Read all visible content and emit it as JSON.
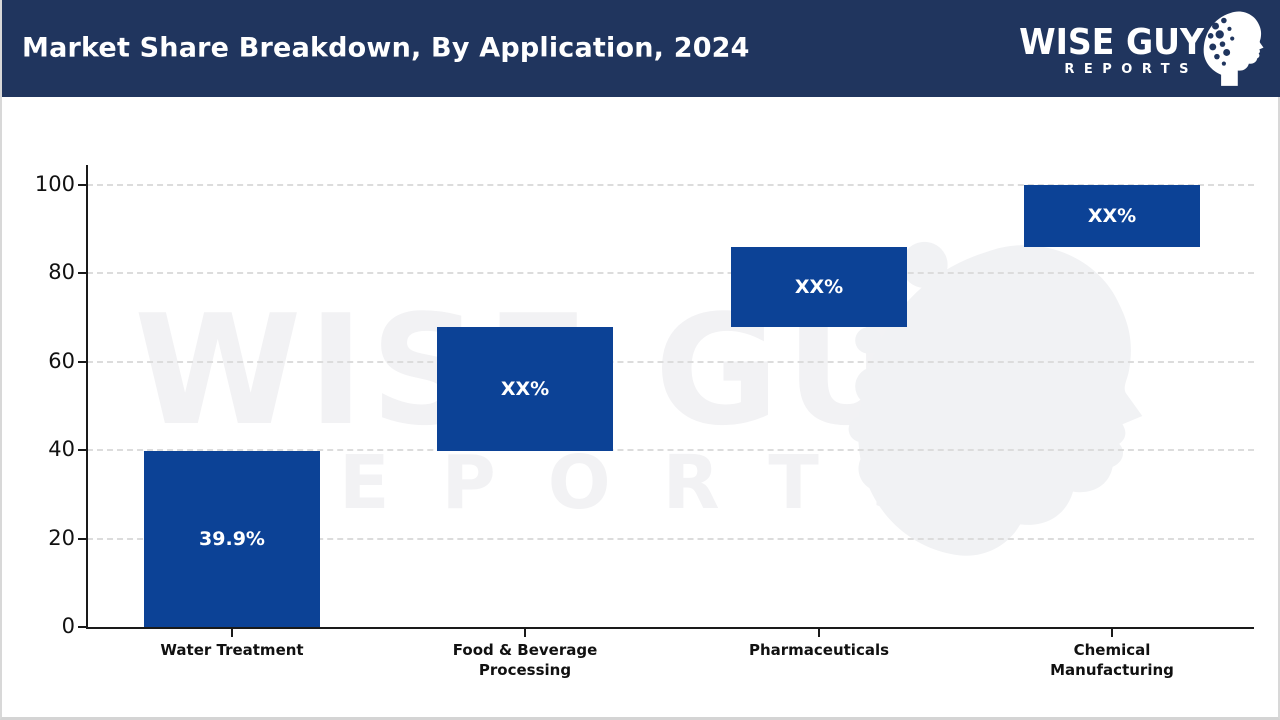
{
  "header": {
    "title": "Market Share Breakdown, By Application, 2024",
    "bg_color": "#20355e",
    "logo": {
      "line1": "WISE GUY",
      "line2": "REPORTS"
    }
  },
  "watermark": {
    "line1": "WISE GUY",
    "line2": "REPORTS"
  },
  "chart_data": {
    "type": "bar",
    "subtype": "waterfall-floating-segments",
    "title": "Market Share Breakdown, By Application, 2024",
    "categories": [
      "Water Treatment",
      "Food & Beverage Processing",
      "Pharmaceuticals",
      "Chemical Manufacturing"
    ],
    "segments": [
      {
        "category": "Water Treatment",
        "start": 0,
        "end": 39.9,
        "label": "39.9%"
      },
      {
        "category": "Food & Beverage Processing",
        "start": 39.9,
        "end": 67.9,
        "label": "XX%"
      },
      {
        "category": "Pharmaceuticals",
        "start": 67.9,
        "end": 85.9,
        "label": "XX%"
      },
      {
        "category": "Chemical Manufacturing",
        "start": 85.9,
        "end": 99.9,
        "label": "XX%"
      }
    ],
    "xlabel": "",
    "ylabel": "",
    "yticks": [
      0,
      20,
      40,
      60,
      80,
      100
    ],
    "ylim": [
      0,
      104.5
    ],
    "grid": "horizontal-dashed",
    "legend": "none",
    "bar_color": "#0c4296",
    "bar_label_color": "#ffffff",
    "axis_color": "#1a1a1a",
    "gridline_color": "#dcdcdc",
    "tick_label_color": "#111111"
  }
}
